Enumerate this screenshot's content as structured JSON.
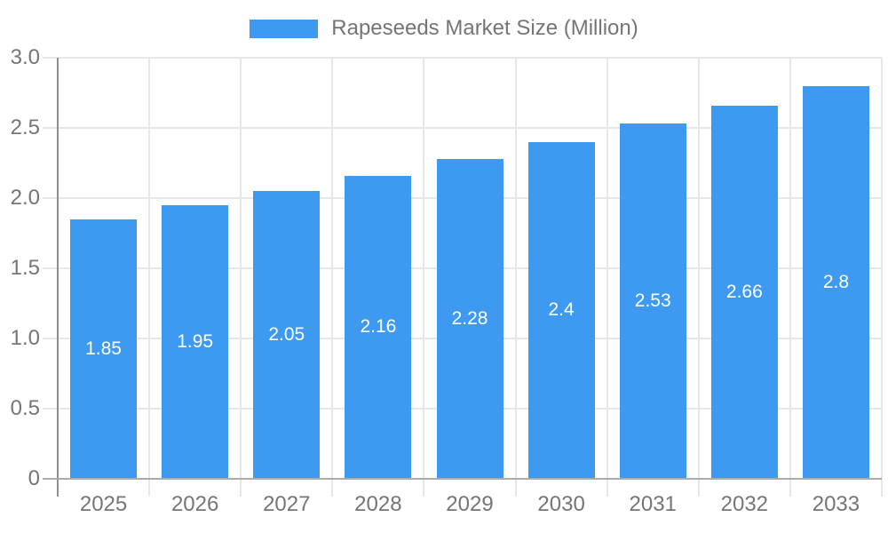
{
  "legend": {
    "label": "Rapeseeds Market Size (Million)"
  },
  "chart_data": {
    "type": "bar",
    "title": "Rapeseeds Market Size (Million)",
    "categories": [
      "2025",
      "2026",
      "2027",
      "2028",
      "2029",
      "2030",
      "2031",
      "2032",
      "2033"
    ],
    "values": [
      1.85,
      1.95,
      2.05,
      2.16,
      2.28,
      2.4,
      2.53,
      2.66,
      2.8
    ],
    "value_labels": [
      "1.85",
      "1.95",
      "2.05",
      "2.16",
      "2.28",
      "2.4",
      "2.53",
      "2.66",
      "2.8"
    ],
    "xlabel": "",
    "ylabel": "",
    "ylim": [
      0,
      3.0
    ],
    "y_tick_labels": [
      "0",
      "0.5",
      "1.0",
      "1.5",
      "2.0",
      "2.5",
      "3.0"
    ],
    "grid": "on",
    "legend_position": "top-center",
    "colors": {
      "bar": "#3e9af0",
      "value_label": "#ffffff",
      "axis_text": "#757575",
      "legend_text": "#757575",
      "gridline": "#e7e7e7",
      "y_axis_line": "#8f8f8f",
      "x_axis_line": "#ababab",
      "background": "#ffffff"
    }
  }
}
